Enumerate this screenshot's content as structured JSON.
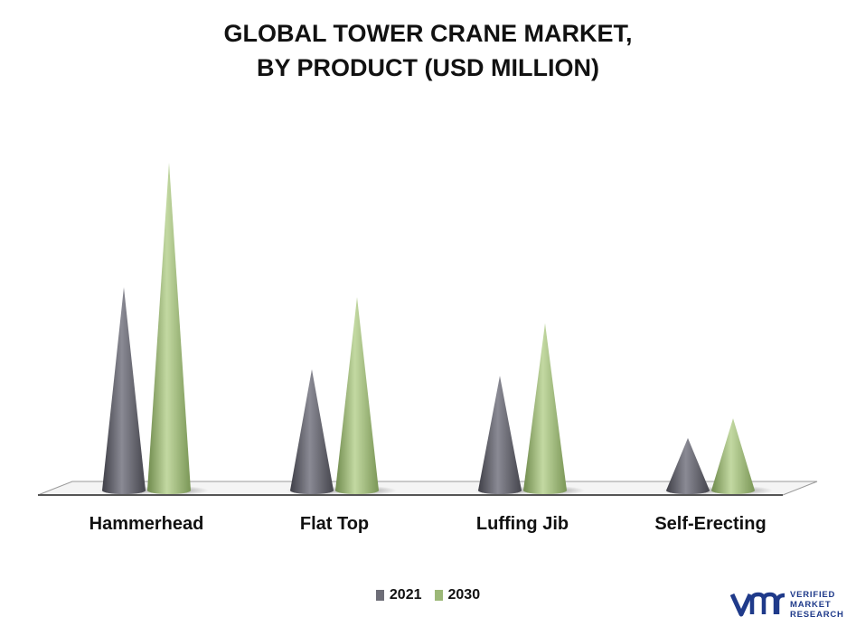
{
  "title": {
    "line1": "GLOBAL TOWER CRANE MARKET,",
    "line2": "BY PRODUCT (USD MILLION)"
  },
  "colors": {
    "series_2021": "#6e6e78",
    "series_2030": "#9cb878",
    "logo": "#1f3a8a"
  },
  "legend": {
    "items": [
      {
        "label": "2021",
        "color": "#6e6e78"
      },
      {
        "label": "2030",
        "color": "#9cb878"
      }
    ]
  },
  "logo": {
    "icon": "vmr-logo-icon",
    "line1": "VERIFIED",
    "line2": "MARKET",
    "line3": "RESEARCH"
  },
  "chart_data": {
    "type": "bar",
    "shape": "cone",
    "categories": [
      "Hammerhead",
      "Flat Top",
      "Luffing Jib",
      "Self-Erecting"
    ],
    "series": [
      {
        "name": "2021",
        "values": [
          62,
          37,
          35,
          16
        ]
      },
      {
        "name": "2030",
        "values": [
          100,
          59,
          51,
          22
        ]
      }
    ],
    "title": "GLOBAL TOWER CRANE MARKET, BY PRODUCT (USD MILLION)",
    "xlabel": "",
    "ylabel": "",
    "ylim": [
      0,
      100
    ],
    "grid": false,
    "legend_position": "bottom"
  }
}
